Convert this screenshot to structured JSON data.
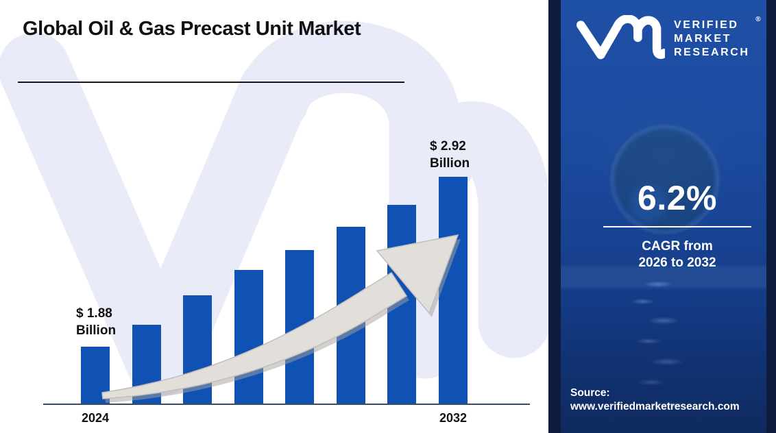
{
  "header": {
    "title": "Global Oil & Gas Precast Unit Market"
  },
  "chart_data": {
    "type": "bar",
    "title": "Global Oil & Gas Precast Unit Market",
    "categories": [
      "2024",
      "",
      "",
      "",
      "",
      "",
      "",
      "2032"
    ],
    "values": [
      1.88,
      null,
      null,
      null,
      null,
      null,
      null,
      2.92
    ],
    "values_unit": "USD Billion",
    "relative_heights": [
      0.251,
      0.348,
      0.477,
      0.589,
      0.677,
      0.779,
      0.876,
      1.0
    ],
    "x_tick_labels": [
      "2024",
      "2032"
    ],
    "annotations": {
      "start": {
        "line1": "$ 1.88",
        "line2": "Billion"
      },
      "end": {
        "line1": "$ 2.92",
        "line2": "Billion"
      }
    },
    "legend": "none",
    "grid": "off"
  },
  "sidebar": {
    "brand": {
      "logo": "vmr-monogram",
      "lines": [
        "VERIFIED",
        "MARKET",
        "RESEARCH"
      ],
      "registered": "®"
    },
    "cagr": {
      "value": "6.2%",
      "caption_line1": "CAGR from",
      "caption_line2": "2026 to 2032"
    },
    "source": {
      "label": "Source:",
      "url": "www.verifiedmarketresearch.com"
    }
  },
  "colors": {
    "bar": "#0f52b4",
    "watermark": "#e9ecf8",
    "panel_top": "#1e50a6",
    "panel_bottom": "#0f2a5e",
    "panel_edge": "#0d1c3f",
    "arrow_face": "#e2dfdb",
    "arrow_shadow": "#a6a29e",
    "axis": "#3a4a63",
    "title": "#111111"
  }
}
